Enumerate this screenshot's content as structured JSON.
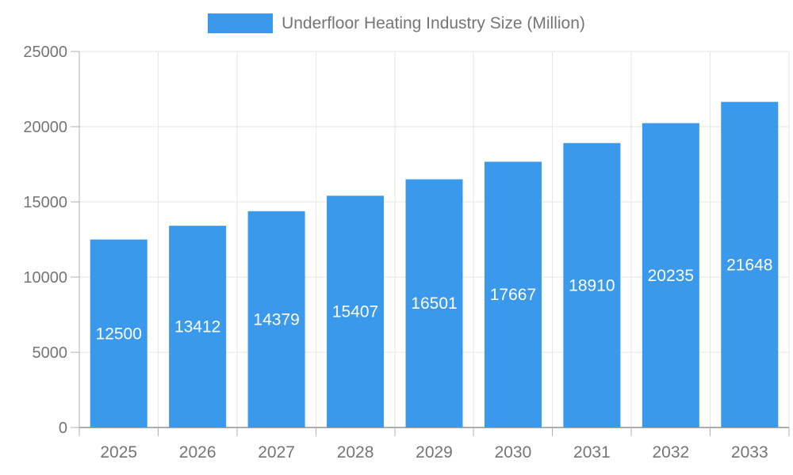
{
  "chart_data": {
    "type": "bar",
    "title": "",
    "legend_label": "Underfloor Heating Industry Size (Million)",
    "legend_position": "top",
    "categories": [
      "2025",
      "2026",
      "2027",
      "2028",
      "2029",
      "2030",
      "2031",
      "2032",
      "2033"
    ],
    "values": [
      12500,
      13412,
      14379,
      15407,
      16501,
      17667,
      18910,
      20235,
      21648
    ],
    "series": [
      {
        "name": "Underfloor Heating Industry Size (Million)",
        "values": [
          12500,
          13412,
          14379,
          15407,
          16501,
          17667,
          18910,
          20235,
          21648
        ]
      }
    ],
    "xlabel": "",
    "ylabel": "",
    "ylim": [
      0,
      25000
    ],
    "yticks": [
      0,
      5000,
      10000,
      15000,
      20000,
      25000
    ],
    "grid": true,
    "value_labels_inside_bars": true,
    "colors": {
      "bar": "#3B99EC",
      "grid": "#E6E6E6",
      "axis": "#B0B0B0",
      "baseline": "#ADADAD",
      "text": "#757575",
      "value_label": "#FFFFFF",
      "background": "#FFFFFF"
    }
  }
}
